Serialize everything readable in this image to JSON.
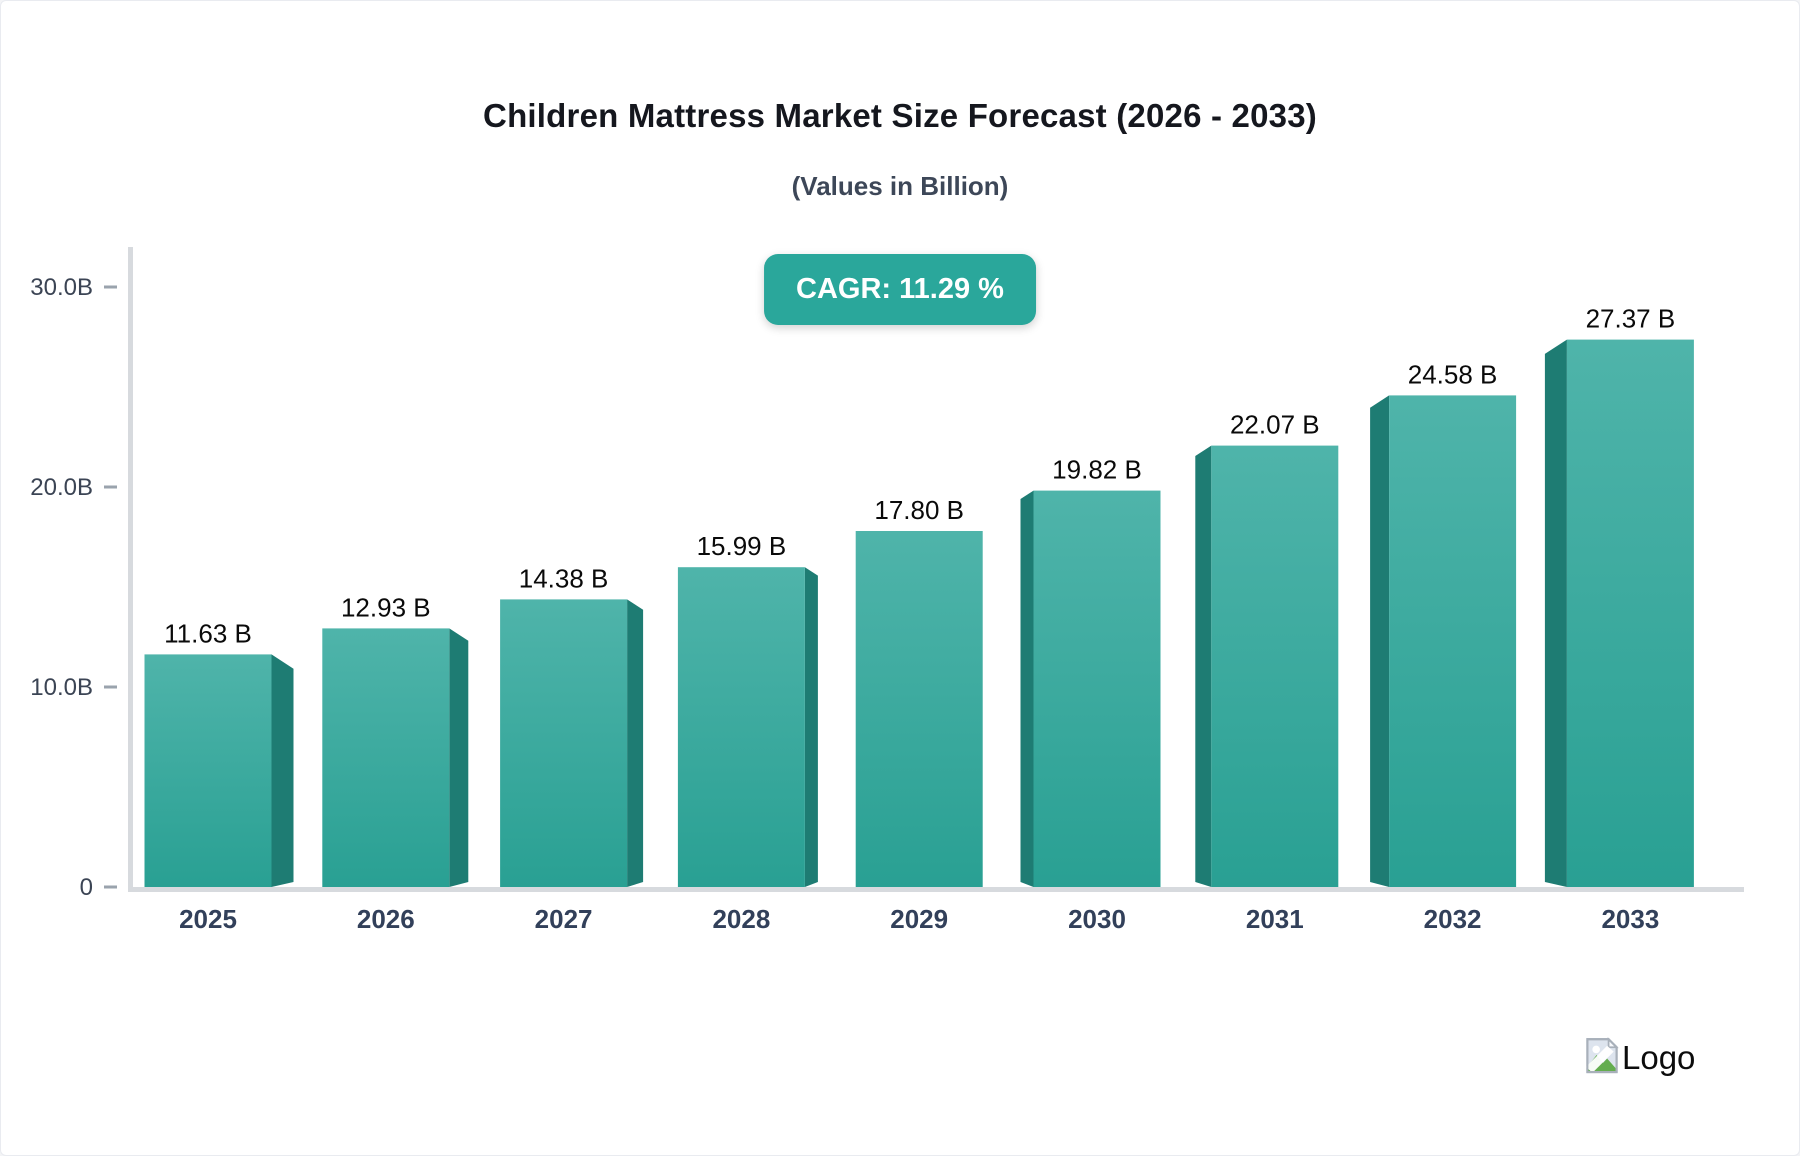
{
  "header": {
    "title": "Children Mattress Market Size Forecast (2026 - 2033)",
    "subtitle": "(Values in Billion)",
    "cagr_badge": "CAGR: 11.29 %",
    "badge_color": "#2aa79b",
    "badge_text_color": "#ffffff"
  },
  "chart_data": {
    "type": "bar",
    "title": "Children Mattress Market Size Forecast (2026 - 2033)",
    "subtitle": "(Values in Billion)",
    "cagr": "11.29 %",
    "categories": [
      "2025",
      "2026",
      "2027",
      "2028",
      "2029",
      "2030",
      "2031",
      "2032",
      "2033"
    ],
    "values": [
      11.63,
      12.93,
      14.38,
      15.99,
      17.8,
      19.82,
      22.07,
      24.58,
      27.37
    ],
    "value_labels": [
      "11.63 B",
      "12.93 B",
      "14.38 B",
      "15.99 B",
      "17.80 B",
      "19.82 B",
      "22.07 B",
      "24.58 B",
      "27.37 B"
    ],
    "unit": "B",
    "xlabel": "",
    "ylabel": "",
    "ylim": [
      0,
      30
    ],
    "y_ticks": [
      {
        "v": 0,
        "label": "0"
      },
      {
        "v": 10,
        "label": "10.0B"
      },
      {
        "v": 20,
        "label": "20.0B"
      },
      {
        "v": 30,
        "label": "30.0B"
      }
    ],
    "grid": false,
    "legend": false,
    "bar_color_top": "#4fb4aa",
    "bar_color_bottom": "#29a093",
    "bar_side_color": "#1e7c73",
    "axis_line_color": "#d7dade",
    "tick_color": "#9aa3ad",
    "axis_label_color": "#3b4454",
    "category_label_color": "#32405a",
    "value_label_color": "#0a0a0a"
  },
  "footer": {
    "logo_alt": "Logo"
  }
}
